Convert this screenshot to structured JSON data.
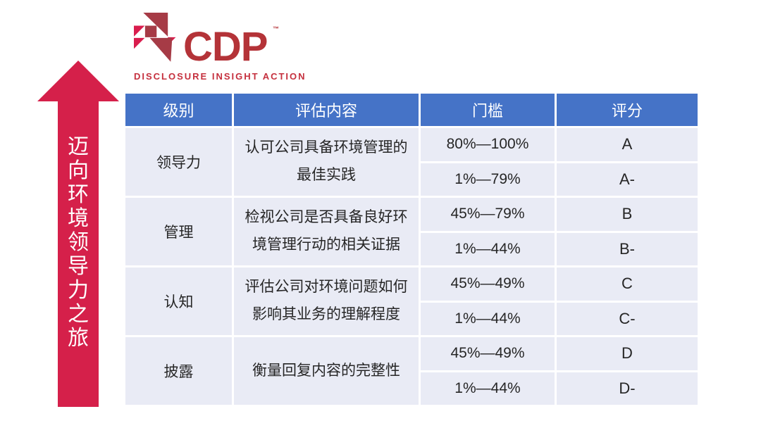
{
  "logo": {
    "brand": "CDP",
    "trademark": "™",
    "tagline": "DISCLOSURE INSIGHT ACTION",
    "colors": {
      "mark_dark": "#A63B46",
      "mark_bright": "#D91C4D",
      "brand_text": "#B43338",
      "tagline_text": "#C5303E"
    }
  },
  "arrow": {
    "label": "迈向环境领导力之旅",
    "direction": "up",
    "color": "#D5204A",
    "label_color": "#FFFFFF"
  },
  "table": {
    "header_bg": "#4573C7",
    "cell_bg": "#E9EBF5",
    "columns": [
      "级别",
      "评估内容",
      "门槛",
      "评分"
    ],
    "groups": [
      {
        "level": "领导力",
        "description": "认可公司具备环境管理的最佳实践",
        "rows": [
          {
            "threshold": "80%—100%",
            "grade": "A"
          },
          {
            "threshold": "1%—79%",
            "grade": "A-"
          }
        ]
      },
      {
        "level": "管理",
        "description": "检视公司是否具备良好环境管理行动的相关证据",
        "rows": [
          {
            "threshold": "45%—79%",
            "grade": "B"
          },
          {
            "threshold": "1%—44%",
            "grade": "B-"
          }
        ]
      },
      {
        "level": "认知",
        "description": "评估公司对环境问题如何影响其业务的理解程度",
        "rows": [
          {
            "threshold": "45%—49%",
            "grade": "C"
          },
          {
            "threshold": "1%—44%",
            "grade": "C-"
          }
        ]
      },
      {
        "level": "披露",
        "description": "衡量回复内容的完整性",
        "rows": [
          {
            "threshold": "45%—49%",
            "grade": "D"
          },
          {
            "threshold": "1%—44%",
            "grade": "D-"
          }
        ]
      }
    ]
  }
}
